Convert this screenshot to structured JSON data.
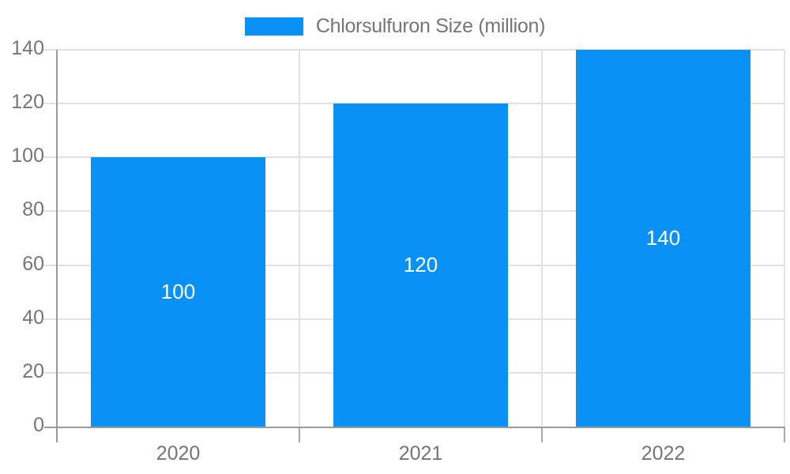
{
  "chart_data": {
    "type": "bar",
    "title": "",
    "legend": {
      "label": "Chlorsulfuron Size (million)",
      "position": "top"
    },
    "categories": [
      "2020",
      "2021",
      "2022"
    ],
    "series": [
      {
        "name": "Chlorsulfuron Size (million)",
        "values": [
          100,
          120,
          140
        ]
      }
    ],
    "bar_labels": [
      "100",
      "120",
      "140"
    ],
    "ylim": [
      0,
      140
    ],
    "yticks": [
      0,
      20,
      40,
      60,
      80,
      100,
      120,
      140
    ],
    "grid": true,
    "legend_position": "top-center",
    "colors": {
      "bar": "#0a91f5",
      "axis_line": "#9a9a9a",
      "gridline": "#e2e2e2",
      "boundary_tick": "#a8a8a8",
      "tick_text": "#757575",
      "bar_label_text": "#ffffff",
      "legend_text": "#757575",
      "background": "#ffffff"
    }
  }
}
